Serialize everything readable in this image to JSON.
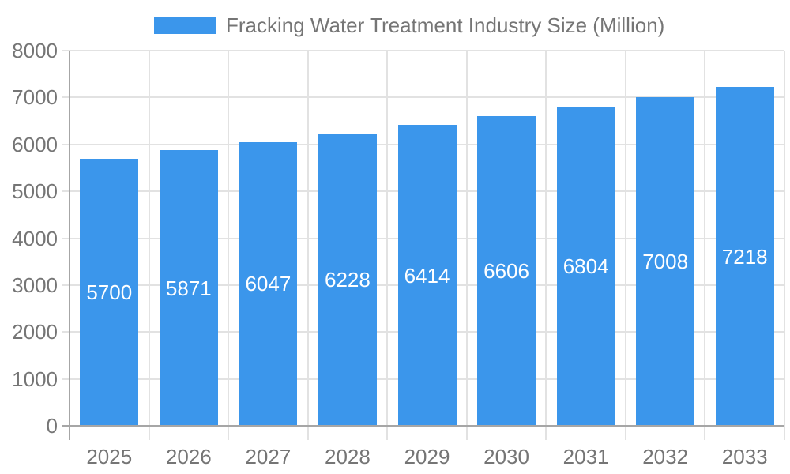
{
  "legend": {
    "label": "Fracking Water Treatment Industry Size (Million)"
  },
  "chart_data": {
    "type": "bar",
    "title": "Fracking Water Treatment Industry Size (Million)",
    "categories": [
      "2025",
      "2026",
      "2027",
      "2028",
      "2029",
      "2030",
      "2031",
      "2032",
      "2033"
    ],
    "values": [
      5700,
      5871,
      6047,
      6228,
      6414,
      6606,
      6804,
      7008,
      7218
    ],
    "xlabel": "",
    "ylabel": "",
    "ylim": [
      0,
      8000
    ],
    "yticks": [
      0,
      1000,
      2000,
      3000,
      4000,
      5000,
      6000,
      7000,
      8000
    ],
    "grid": true,
    "legend_position": "top",
    "bar_color": "#3B96EB",
    "value_label_color": "#FFFFFF",
    "axis_text_color": "#757575",
    "gridline_color": "#E2E2E2",
    "axis_line_color": "#A6A6A6"
  }
}
